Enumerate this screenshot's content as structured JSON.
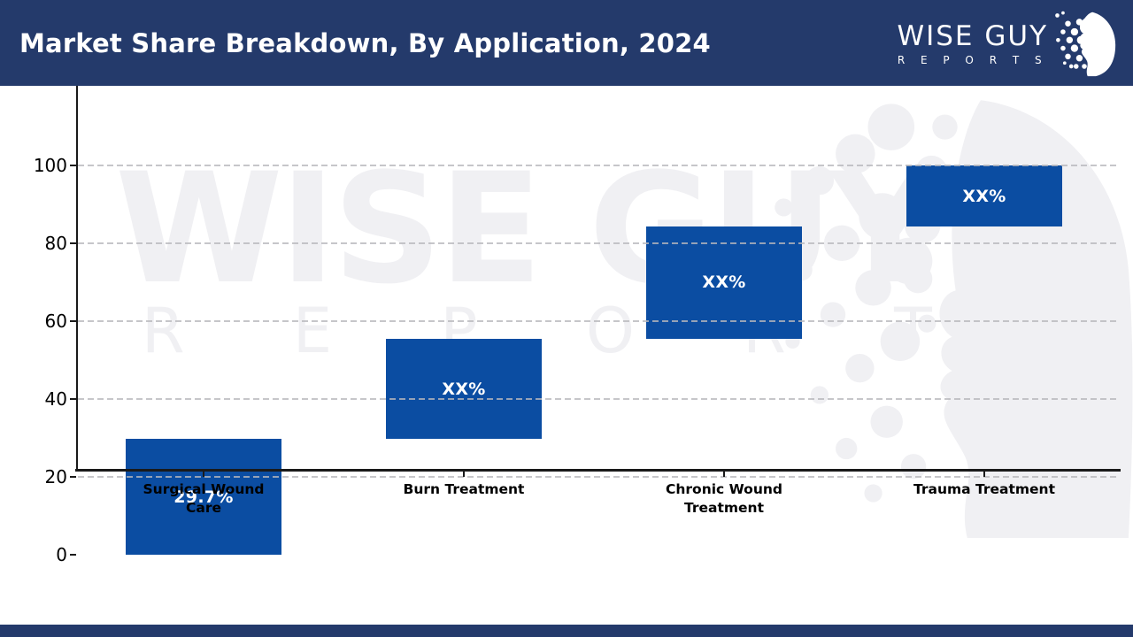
{
  "header": {
    "title": "Market Share Breakdown, By Application, 2024",
    "logo": {
      "name": "WISE GUY",
      "sub": "R E P O R T S"
    }
  },
  "watermark": {
    "big": "WISE GUY",
    "sub": "R E P O R T S"
  },
  "colors": {
    "header_bg": "#243a6b",
    "footer_bg": "#243a6b",
    "bar": "#0b4da2",
    "bar_label": "#ffffff",
    "axis": "#1a1a1a",
    "grid": "#b8b8bc",
    "watermark": "#f0f0f3"
  },
  "chart_data": {
    "type": "bar",
    "subtype": "floating-waterfall",
    "title": "Market Share Breakdown, By Application, 2024",
    "categories": [
      "Surgical Wound\nCare",
      "Burn Treatment",
      "Chronic Wound\nTreatment",
      "Trauma Treatment"
    ],
    "segments": [
      {
        "category": "Surgical Wound Care",
        "start": 0,
        "end": 29.7,
        "label": "29.7%"
      },
      {
        "category": "Burn Treatment",
        "start": 29.7,
        "end": 55.5,
        "label": "XX%"
      },
      {
        "category": "Chronic Wound Treatment",
        "start": 55.5,
        "end": 84.3,
        "label": "XX%"
      },
      {
        "category": "Trauma Treatment",
        "start": 84.3,
        "end": 100,
        "label": "XX%"
      }
    ],
    "xlabel": "",
    "ylabel": "",
    "ylim": [
      0,
      100
    ],
    "yticks": [
      0,
      20,
      40,
      60,
      80,
      100
    ],
    "grid": "horizontal-dashed-over-bars",
    "legend": "none"
  }
}
